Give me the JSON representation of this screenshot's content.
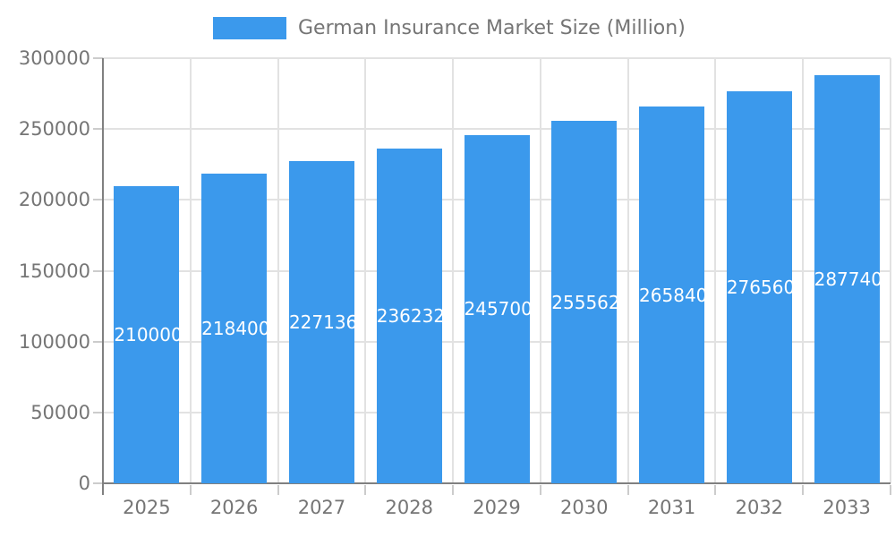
{
  "legend": {
    "label": "German Insurance Market Size (Million)"
  },
  "colors": {
    "bar": "#3b99ec",
    "bar_label_text": "#ffffff",
    "axis_label_text": "#757575",
    "legend_text": "#757575",
    "gridline": "#e2e2e2",
    "axis_line": "#808080",
    "tick": "#cccccc",
    "background": "#ffffff"
  },
  "chart_data": {
    "type": "bar",
    "title": "German Insurance Market Size (Million)",
    "categories": [
      "2025",
      "2026",
      "2027",
      "2028",
      "2029",
      "2030",
      "2031",
      "2032",
      "2033"
    ],
    "values": [
      210000,
      218400,
      227136,
      236232,
      245700,
      255562,
      265840,
      276560,
      287740
    ],
    "bar_value_labels": [
      "210000",
      "218400",
      "227136",
      "236232",
      "245700",
      "255562",
      "265840",
      "276560",
      "287740"
    ],
    "xlabel": "",
    "ylabel": "",
    "ylim": [
      0,
      300000
    ],
    "yticks": [
      0,
      50000,
      100000,
      150000,
      200000,
      250000,
      300000
    ],
    "ytick_labels": [
      "0",
      "50000",
      "100000",
      "150000",
      "200000",
      "250000",
      "300000"
    ],
    "grid": true,
    "legend_position": "top"
  }
}
